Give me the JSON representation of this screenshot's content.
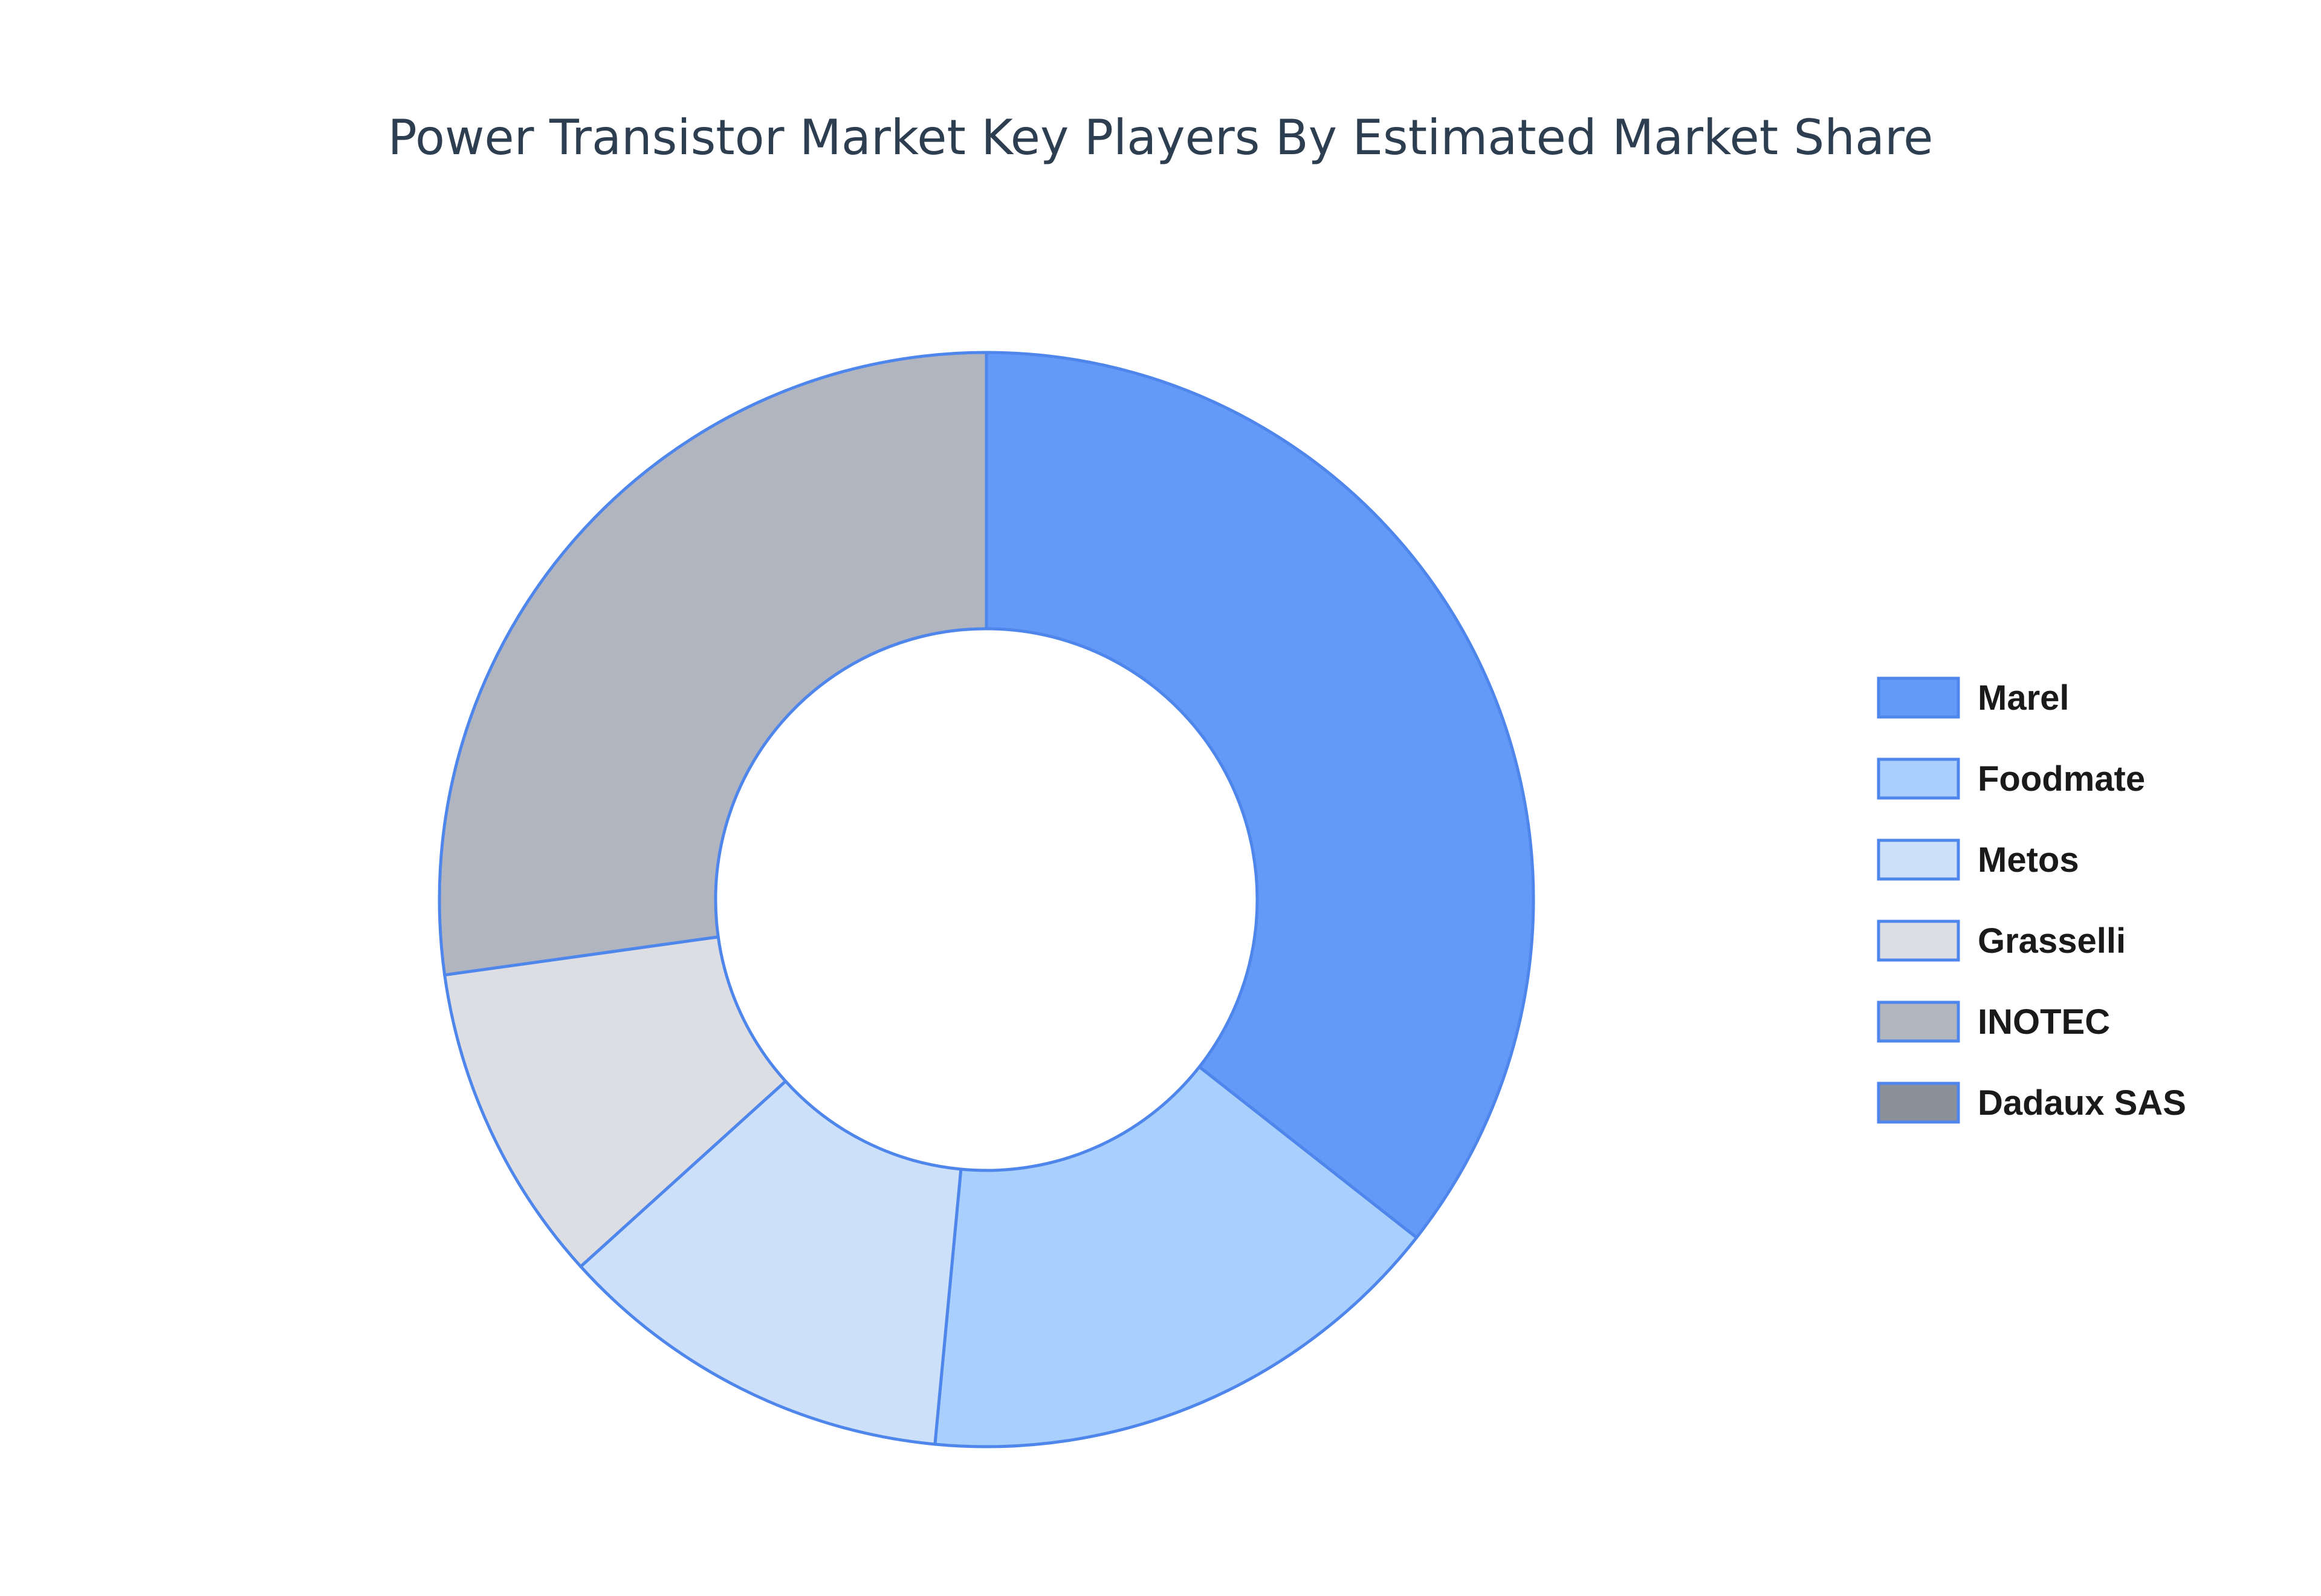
{
  "chart_data": {
    "type": "pie",
    "title": "Power Transistor Market Key Players By Estimated Market Share",
    "donut": true,
    "legend_position": "right",
    "categories": [
      "Marel",
      "Foodmate",
      "Metos",
      "Grasselli",
      "INOTEC",
      "Dadaux SAS"
    ],
    "values": [
      35.6,
      15.9,
      11.8,
      9.5,
      27.2,
      0
    ],
    "colors": [
      "#6399f7",
      "#a9d0fc",
      "#cce0fa",
      "#dcdee3",
      "#b1b5bf",
      "#8b8f9a"
    ],
    "outline_color": "#4f86ec"
  }
}
